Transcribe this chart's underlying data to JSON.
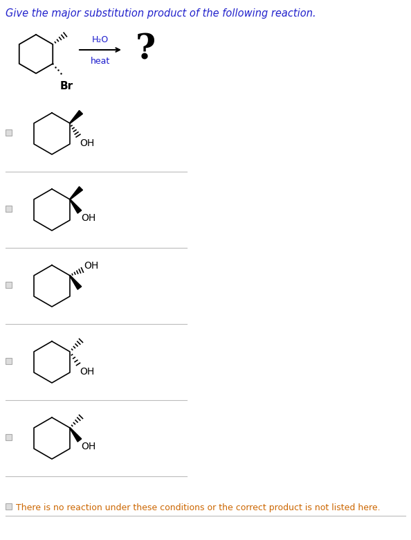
{
  "title": "Give the major substitution product of the following reaction.",
  "title_color": "#2222cc",
  "title_fontsize": 10.5,
  "bg_color": "#ffffff",
  "h2o_label": "H₂O",
  "heat_label": "heat",
  "br_label": "Br",
  "oh_label": "OH",
  "answer_last_text": "There is no reaction under these conditions or the correct product is not listed here.",
  "answer_last_color": "#cc6600"
}
